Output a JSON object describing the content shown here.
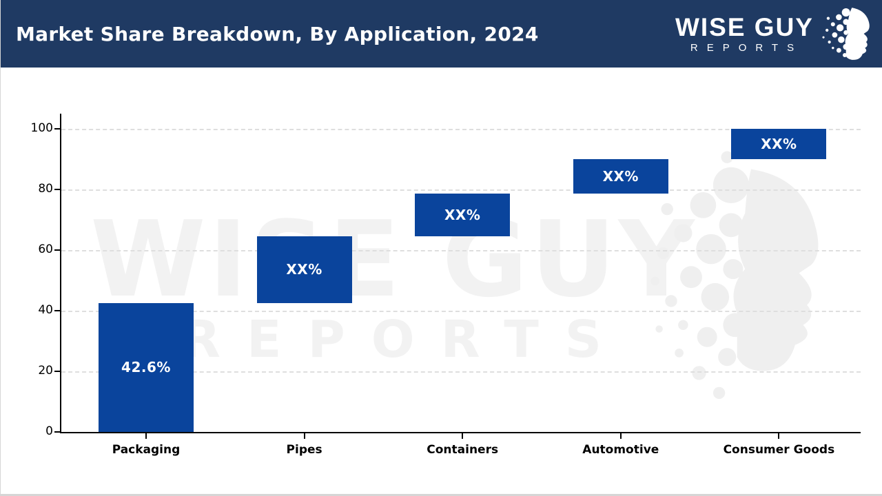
{
  "header": {
    "title": "Market Share Breakdown, By Application, 2024",
    "logo": {
      "line1": "WISE GUY",
      "line2": "REPORTS"
    }
  },
  "watermark": {
    "line1": "WISE GUY",
    "line2": "REPORTS"
  },
  "colors": {
    "header_bg": "#1f3a63",
    "bar_blue": "#0a449c",
    "bar_label": "#ffffff",
    "grid": "#dedede",
    "axis": "#000000",
    "watermark": "#f2f2f2"
  },
  "chart_data": {
    "type": "bar",
    "subtype": "waterfall-floating-bars",
    "title": "Market Share Breakdown, By Application, 2024",
    "xlabel": "",
    "ylabel": "",
    "ylim": [
      0,
      100
    ],
    "yticks": [
      0,
      20,
      40,
      60,
      80,
      100
    ],
    "grid": "horizontal-dashed",
    "legend": "none",
    "categories": [
      "Packaging",
      "Pipes",
      "Containers",
      "Automotive",
      "Consumer Goods"
    ],
    "segments": [
      {
        "category": "Packaging",
        "start": 0,
        "end": 42.6,
        "label": "42.6%"
      },
      {
        "category": "Pipes",
        "start": 42.6,
        "end": 64.5,
        "label": "XX%"
      },
      {
        "category": "Containers",
        "start": 64.5,
        "end": 78.7,
        "label": "XX%"
      },
      {
        "category": "Automotive",
        "start": 78.7,
        "end": 90.0,
        "label": "XX%"
      },
      {
        "category": "Consumer Goods",
        "start": 90.0,
        "end": 100.0,
        "label": "XX%"
      }
    ]
  }
}
